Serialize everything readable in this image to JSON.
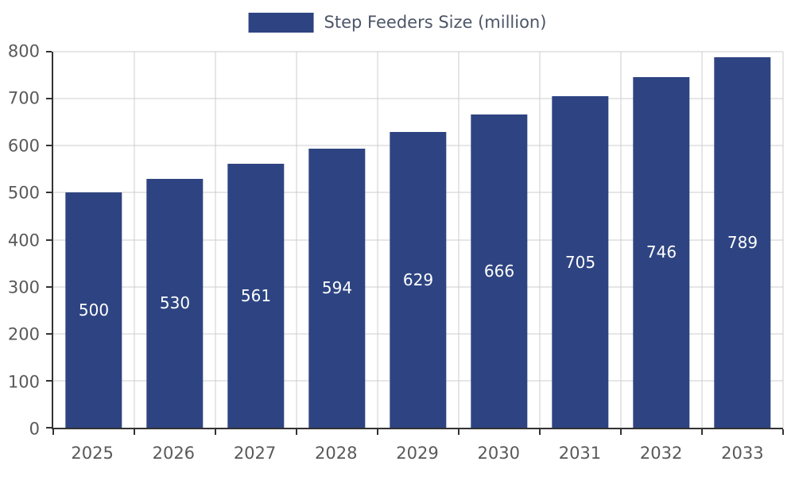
{
  "legend": {
    "label": "Step Feeders Size (million)"
  },
  "colors": {
    "bar": "#2e4482",
    "grid": "#cccccc",
    "axis": "#333333",
    "tick_text": "#595959",
    "legend_text": "#4c5668",
    "value_text": "#ffffff",
    "background": "#ffffff"
  },
  "chart_data": {
    "type": "bar",
    "title": "Step Feeders Size (million)",
    "categories": [
      "2025",
      "2026",
      "2027",
      "2028",
      "2029",
      "2030",
      "2031",
      "2032",
      "2033"
    ],
    "values": [
      500,
      530,
      561,
      594,
      629,
      666,
      705,
      746,
      789
    ],
    "xlabel": "",
    "ylabel": "",
    "ylim": [
      0,
      800
    ],
    "ytick_step": 100,
    "grid": true,
    "legend_position": "top-center",
    "value_labels": "inside-center-white"
  }
}
